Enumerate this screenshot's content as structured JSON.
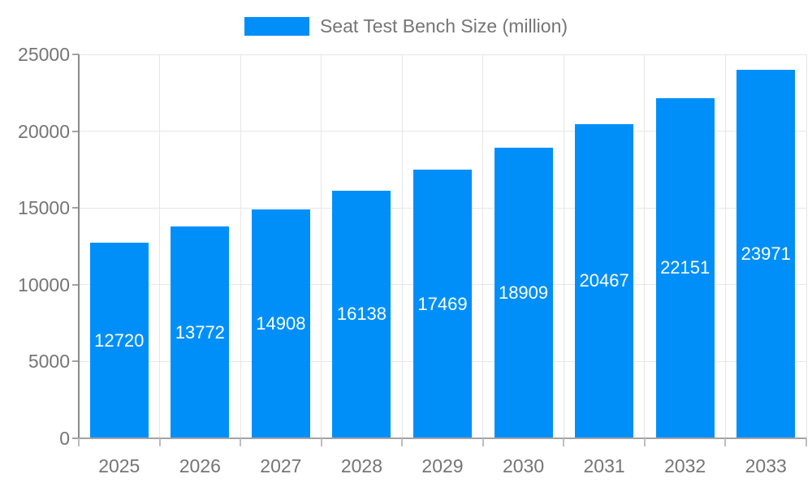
{
  "legend": {
    "label": "Seat Test Bench Size (million)"
  },
  "colors": {
    "bar": "#008ff9",
    "bar_label": "#ffffff",
    "grid": "#e6e6e6",
    "y_axis": "#8a8a8a",
    "x_axis": "#a3a3a3",
    "tick": "#bdbdbd",
    "axis_text": "#757575",
    "background": "#ffffff"
  },
  "chart_data": {
    "type": "bar",
    "title": "",
    "xlabel": "",
    "ylabel": "",
    "categories": [
      "2025",
      "2026",
      "2027",
      "2028",
      "2029",
      "2030",
      "2031",
      "2032",
      "2033"
    ],
    "series": [
      {
        "name": "Seat Test Bench Size (million)",
        "values": [
          12720,
          13772,
          14908,
          16138,
          17469,
          18909,
          20467,
          22151,
          23971
        ]
      }
    ],
    "bar_value_labels": [
      12720,
      13772,
      14908,
      16138,
      17469,
      18909,
      20467,
      22151,
      23971
    ],
    "legend": [
      "Seat Test Bench Size (million)"
    ],
    "legend_position": "top",
    "ylim": [
      0,
      25000
    ],
    "yticks": [
      0,
      5000,
      10000,
      15000,
      20000,
      25000
    ],
    "grid": true,
    "bar_labels_visible": true
  }
}
